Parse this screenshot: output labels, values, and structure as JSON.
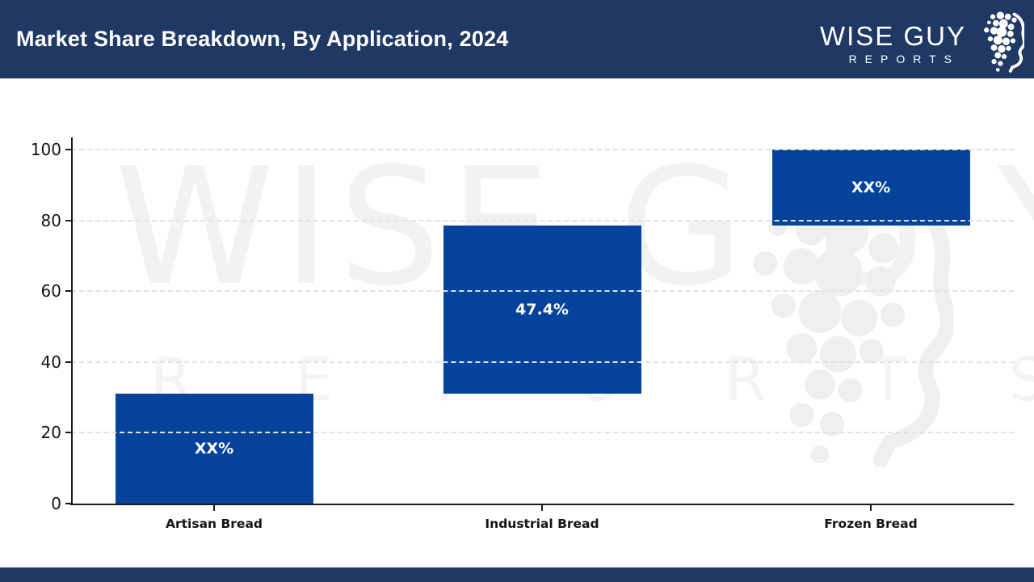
{
  "header": {
    "title": "Market Share Breakdown, By Application, 2024",
    "logo": {
      "line1": "WISE GUY",
      "line2": "REPORTS"
    }
  },
  "watermark": {
    "line1": "WISE G U Y",
    "line2": "R E P O R T S"
  },
  "footer": {},
  "colors": {
    "header_bg": "#1f3864",
    "footer_bg": "#1f3864",
    "bar": "#05429a",
    "bar_label": "#ffffff",
    "gridline": "#e2e2e2",
    "axis": "#1a1a1a"
  },
  "chart_data": {
    "type": "bar",
    "subtype": "floating-waterfall",
    "title": "Market Share Breakdown, By Application, 2024",
    "xlabel": "",
    "ylabel": "",
    "categories": [
      "Artisan Bread",
      "Industrial Bread",
      "Frozen Bread"
    ],
    "series": [
      {
        "name": "Market Share",
        "segments": [
          {
            "from": 0,
            "to": 31.1,
            "label": "XX%"
          },
          {
            "from": 31.1,
            "to": 78.5,
            "label": "47.4%"
          },
          {
            "from": 78.5,
            "to": 100,
            "label": "XX%"
          }
        ]
      }
    ],
    "yticks": [
      0,
      20,
      40,
      60,
      80,
      100
    ],
    "ylim": [
      0,
      103
    ],
    "grid": "dashed-horizontal-over-bars",
    "legend": "none"
  }
}
